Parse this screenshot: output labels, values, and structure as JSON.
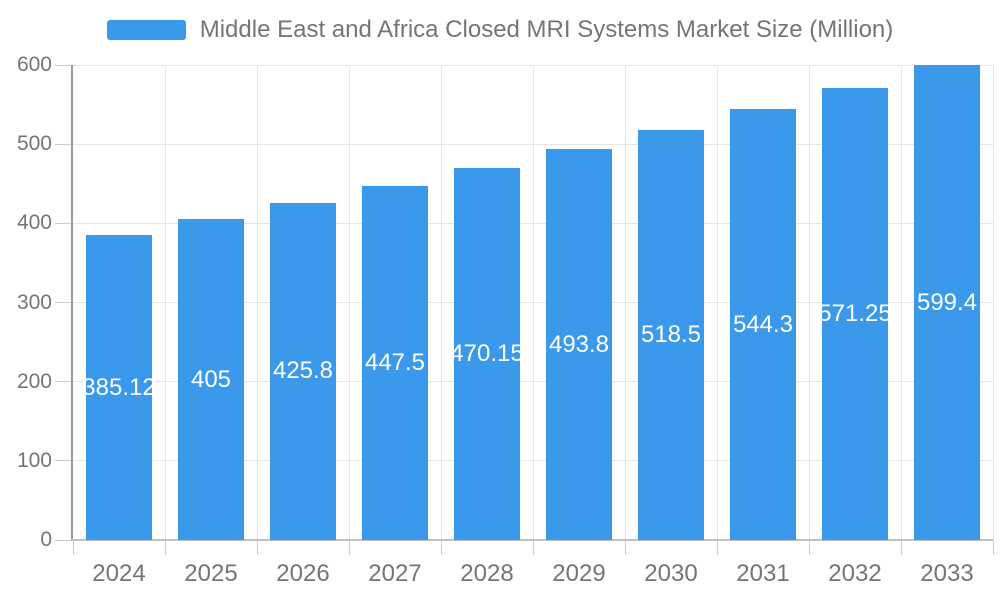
{
  "legend": {
    "label": "Middle East and Africa Closed MRI Systems Market Size (Million)"
  },
  "colors": {
    "bar": "#3B99EC",
    "value_label": "#FFFFFF",
    "axis_text": "#757575",
    "gridline": "#E6E6E6",
    "tick": "#CCCCCC",
    "y_axis_line": "#999999",
    "x_axis_line": "#BFBFBF",
    "background": "#FFFFFF"
  },
  "chart_data": {
    "type": "bar",
    "title": "Middle East and Africa Closed MRI Systems Market Size (Million)",
    "categories": [
      "2024",
      "2025",
      "2026",
      "2027",
      "2028",
      "2029",
      "2030",
      "2031",
      "2032",
      "2033"
    ],
    "values": [
      385.12,
      405,
      425.8,
      447.5,
      470.15,
      493.8,
      518.5,
      544.3,
      571.25,
      599.4
    ],
    "data_labels": [
      "385.12",
      "405",
      "425.8",
      "447.5",
      "470.15",
      "493.8",
      "518.5",
      "544.3",
      "571.25",
      "599.4"
    ],
    "xlabel": "",
    "ylabel": "",
    "ylim": [
      0,
      600
    ],
    "yticks": [
      0,
      100,
      200,
      300,
      400,
      500,
      600
    ],
    "grid": true,
    "legend_position": "top",
    "data_labels_position": "middle-inside"
  }
}
